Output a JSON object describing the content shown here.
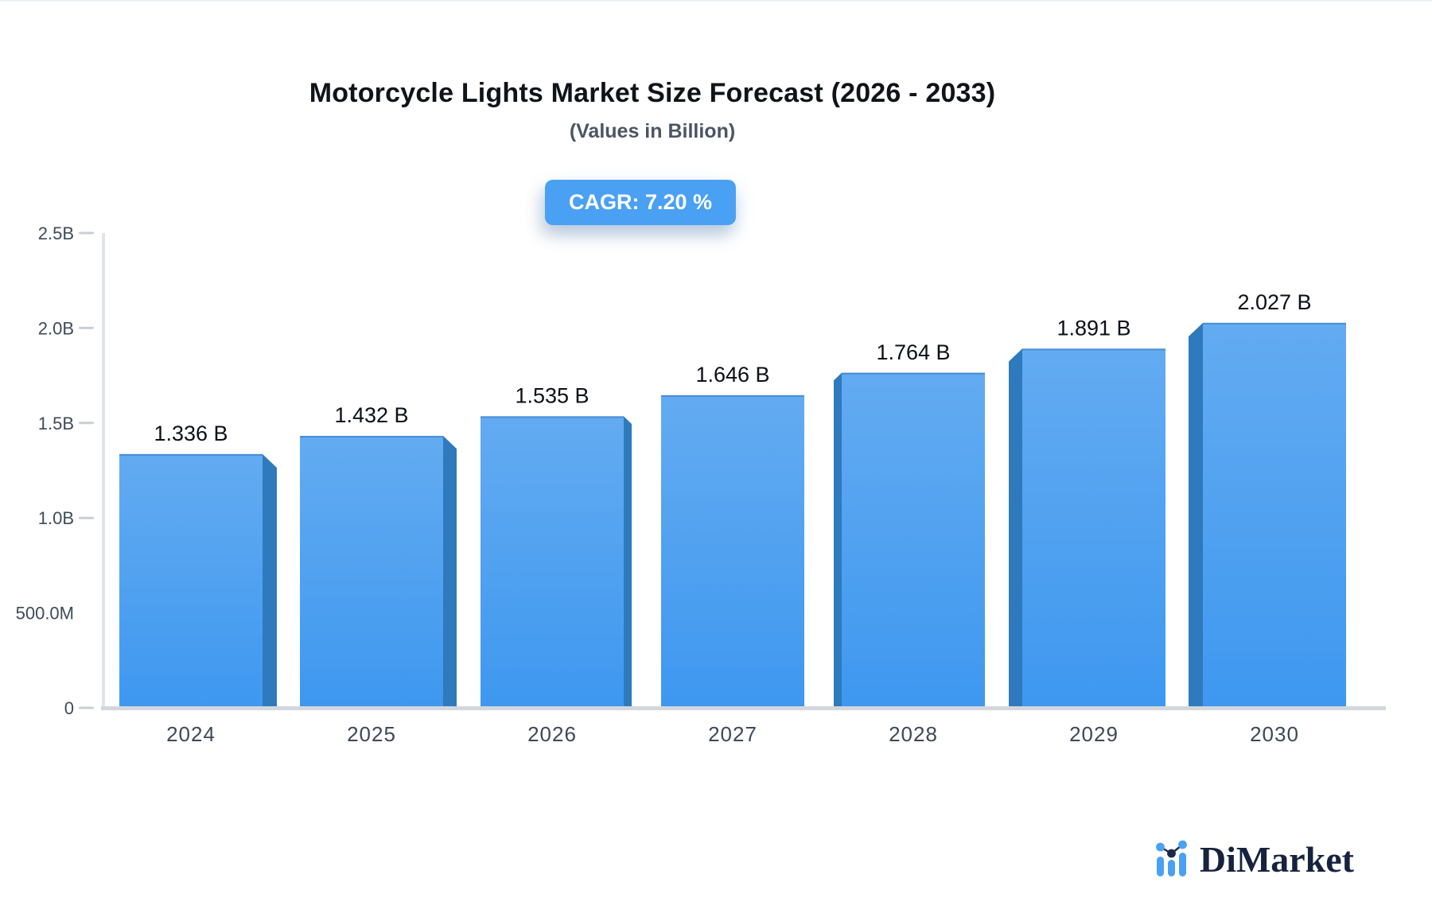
{
  "header": {
    "title": "Motorcycle Lights Market Size Forecast (2026 - 2033)",
    "subtitle": "(Values in Billion)"
  },
  "badge": {
    "label": "CAGR: 7.20 %",
    "background": "#4aa0f2",
    "text_color": "#ffffff"
  },
  "chart_data": {
    "type": "bar",
    "title": "Motorcycle Lights Market Size Forecast (2026 - 2033)",
    "subtitle": "(Values in Billion)",
    "unit": "Billion",
    "cagr_percent": 7.2,
    "categories": [
      "2024",
      "2025",
      "2026",
      "2027",
      "2028",
      "2029",
      "2030"
    ],
    "values": [
      1.336,
      1.432,
      1.535,
      1.646,
      1.764,
      1.891,
      2.027
    ],
    "value_labels": [
      "1.336 B",
      "1.432 B",
      "1.535 B",
      "1.646 B",
      "1.764 B",
      "1.891 B",
      "2.027 B"
    ],
    "ylim": [
      0,
      2.5
    ],
    "yticks": [
      {
        "value": 2.5,
        "label": "2.5B",
        "tick": true
      },
      {
        "value": 2.0,
        "label": "2.0B",
        "tick": true
      },
      {
        "value": 1.5,
        "label": "1.5B",
        "tick": true
      },
      {
        "value": 1.0,
        "label": "1.0B",
        "tick": true
      },
      {
        "value": 0.5,
        "label": "500.0M",
        "tick": false
      },
      {
        "value": 0,
        "label": "0",
        "tick": true
      }
    ],
    "grid": false,
    "legend": "none",
    "style": "3d-perspective-bars",
    "colors": {
      "bar_face_top": "#63abf1",
      "bar_face_bottom": "#3e98f0",
      "bar_face_edge": "#4a8fd6",
      "bar_side": "#2e7abc",
      "axis_line": "#d3d7dd",
      "yaxis_line": "#e0e3e8",
      "tick": "#c9ced5",
      "axis_text": "#3f4a5a",
      "value_text": "#0b0f16"
    }
  },
  "logo": {
    "text": "DiMarket",
    "icon": "bar-chart-logo-icon",
    "text_color": "#16233e",
    "icon_blue": "#4aa0f5",
    "icon_dark": "#1b2a4a"
  }
}
